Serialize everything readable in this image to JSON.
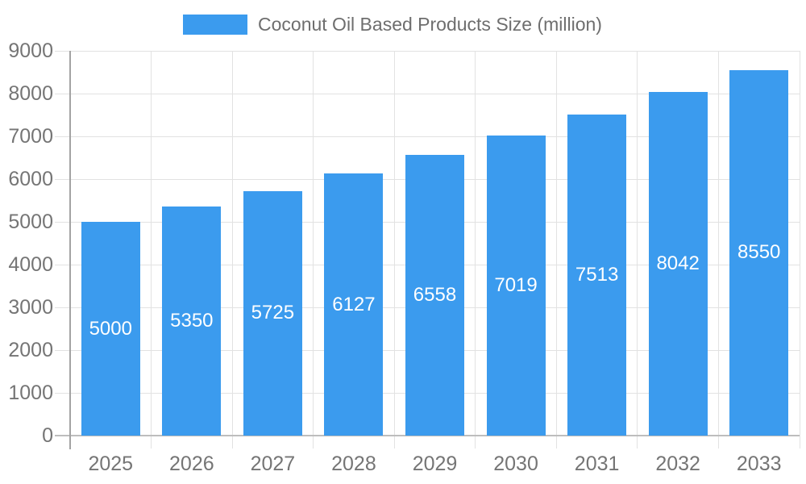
{
  "legend": {
    "label": "Coconut Oil Based Products Size (million)"
  },
  "chart_data": {
    "type": "bar",
    "title": "Coconut Oil Based Products Size (million)",
    "series_name": "Coconut Oil Based Products Size (million)",
    "categories": [
      "2025",
      "2026",
      "2027",
      "2028",
      "2029",
      "2030",
      "2031",
      "2032",
      "2033"
    ],
    "values": [
      5000,
      5350,
      5725,
      6127,
      6558,
      7019,
      7513,
      8042,
      8550
    ],
    "value_labels": [
      "5000",
      "5350",
      "5725",
      "6127",
      "6558",
      "7019",
      "7513",
      "8042",
      "8550"
    ],
    "xlabel": "",
    "ylabel": "",
    "ylim": [
      0,
      9000
    ],
    "ytick_step": 1000,
    "ytick_labels": [
      "0",
      "1000",
      "2000",
      "3000",
      "4000",
      "5000",
      "6000",
      "7000",
      "8000",
      "9000"
    ],
    "grid": true,
    "legend_position": "top-center"
  },
  "colors": {
    "bar": "#3B9BEE",
    "grid": "#E2E2E2",
    "axis_line": "#A3A3A3",
    "zero_line": "#BDBDBD",
    "tick": "#CFCFCF",
    "axis_text": "#757575",
    "legend_text": "#6E6E6E",
    "value_text": "#FFFFFF",
    "background": "#FFFFFF"
  }
}
